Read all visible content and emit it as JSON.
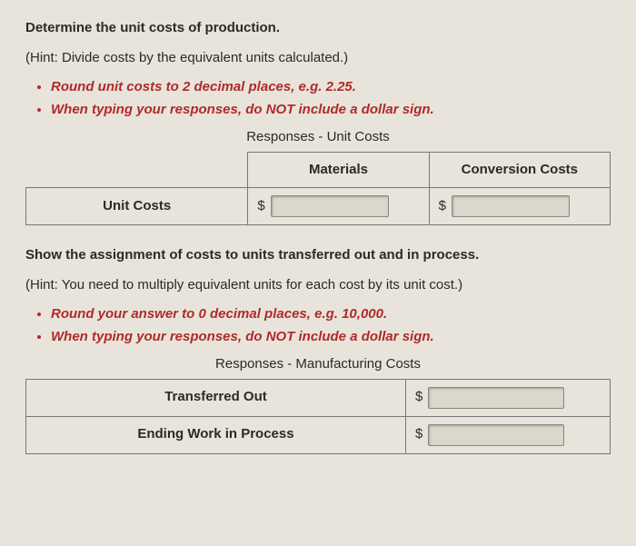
{
  "section1": {
    "heading": "Determine the unit costs of production.",
    "hint": "(Hint: Divide costs by the equivalent units calculated.)",
    "bullets": [
      "Round unit costs to 2 decimal places, e.g. 2.25.",
      "When typing your responses, do NOT include a dollar sign."
    ],
    "responses_title": "Responses - Unit Costs",
    "table": {
      "headers": [
        "Materials",
        "Conversion Costs"
      ],
      "row_label": "Unit Costs",
      "currency": "$",
      "values": {
        "materials": "",
        "conversion": ""
      }
    }
  },
  "section2": {
    "heading": "Show the assignment of costs to units transferred out and in process.",
    "hint": "(Hint: You need to multiply equivalent units for each cost by its unit cost.)",
    "bullets": [
      "Round your answer to 0 decimal places, e.g. 10,000.",
      "When typing your responses, do NOT include a dollar sign."
    ],
    "responses_title": "Responses - Manufacturing Costs",
    "table": {
      "rows": [
        {
          "label": "Transferred Out",
          "value": ""
        },
        {
          "label": "Ending Work in Process",
          "value": ""
        }
      ],
      "currency": "$"
    }
  }
}
